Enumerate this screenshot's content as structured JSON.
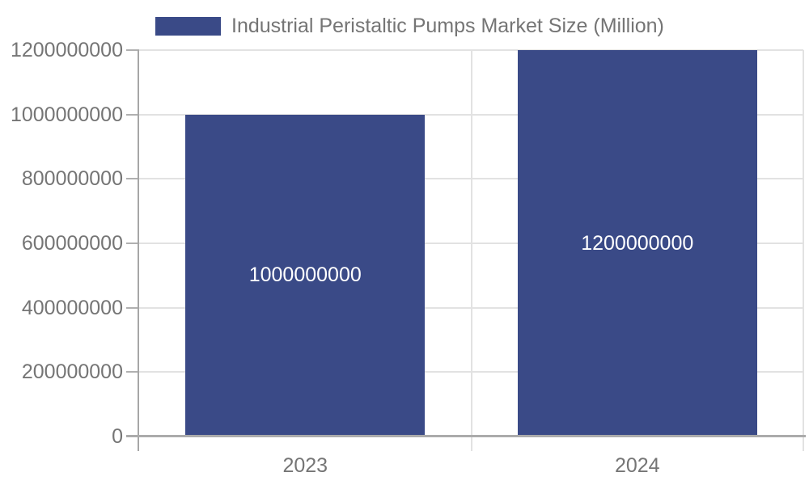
{
  "legend": {
    "label": "Industrial Peristaltic Pumps Market Size (Million)"
  },
  "colors": {
    "bar": "#3a4a87",
    "bar_label": "#ffffff",
    "axis_text": "#757575",
    "gridline": "#e2e2e2",
    "tick": "#b0b0b0",
    "axis_line": "#ababab"
  },
  "chart_data": {
    "type": "bar",
    "title": "Industrial Peristaltic Pumps Market Size (Million)",
    "categories": [
      "2023",
      "2024"
    ],
    "series": [
      {
        "name": "Industrial Peristaltic Pumps Market Size (Million)",
        "values": [
          1000000000,
          1200000000
        ]
      }
    ],
    "bar_labels": [
      "1000000000",
      "1200000000"
    ],
    "yticks": [
      0,
      200000000,
      400000000,
      600000000,
      800000000,
      1000000000,
      1200000000
    ],
    "ytick_labels": [
      "0",
      "200000000",
      "400000000",
      "600000000",
      "800000000",
      "1000000000",
      "1200000000"
    ],
    "ylim": [
      0,
      1200000000
    ],
    "xlabel": "",
    "ylabel": "",
    "grid": true,
    "legend_position": "top"
  }
}
